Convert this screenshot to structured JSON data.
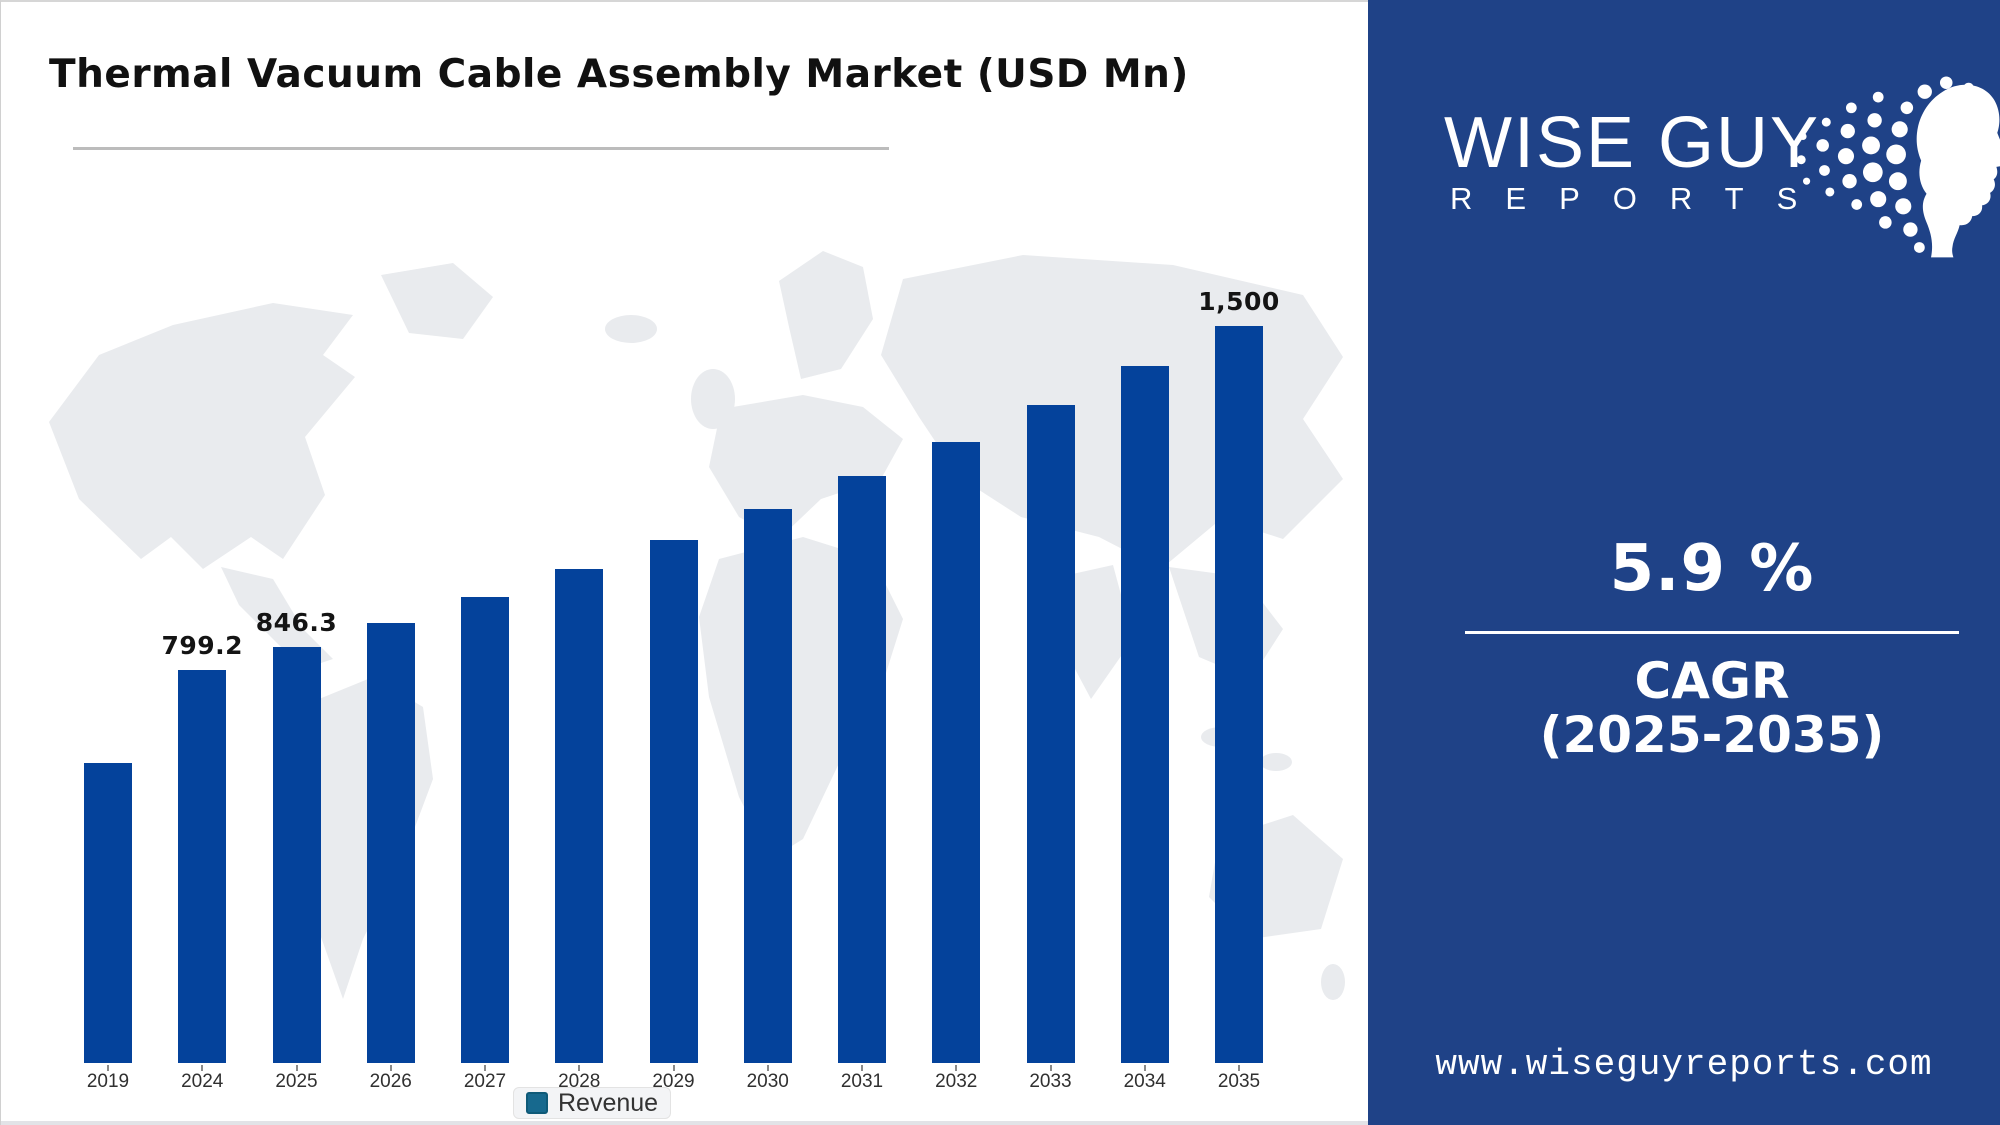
{
  "title": "Thermal Vacuum Cable Assembly Market (USD Mn)",
  "chart_data": {
    "type": "bar",
    "title": "Thermal Vacuum Cable Assembly Market (USD Mn)",
    "unit": "USD Mn",
    "categories": [
      "2019",
      "2024",
      "2025",
      "2026",
      "2027",
      "2028",
      "2029",
      "2030",
      "2031",
      "2032",
      "2033",
      "2034",
      "2035"
    ],
    "values": [
      610,
      799.2,
      846.3,
      896.2,
      949.1,
      1005.1,
      1064.4,
      1127.2,
      1193.7,
      1264.1,
      1338.7,
      1417.7,
      1500
    ],
    "data_labels": [
      "",
      "799.2",
      "846.3",
      "",
      "",
      "",
      "",
      "",
      "",
      "",
      "",
      "",
      "1,500"
    ],
    "xlabel": "",
    "ylabel": "",
    "ylim": [
      0,
      1500
    ],
    "grid": false,
    "legend_position": "bottom",
    "series_name": "Revenue"
  },
  "legend": {
    "label": "Revenue"
  },
  "panel": {
    "logo_line1": "WISE GUY",
    "logo_line2": "REPORTS",
    "cagr_value": "5.9 %",
    "cagr_label_line1": "CAGR",
    "cagr_label_line2": "(2025-2035)",
    "website": "www.wiseguyreports.com"
  },
  "colors": {
    "bar": "#04429b",
    "panel_bg": "#1f4287",
    "legend_swatch": "#17698e",
    "map": "#e9ebee",
    "title_text": "#111111",
    "divider": "#bcbcbc"
  }
}
